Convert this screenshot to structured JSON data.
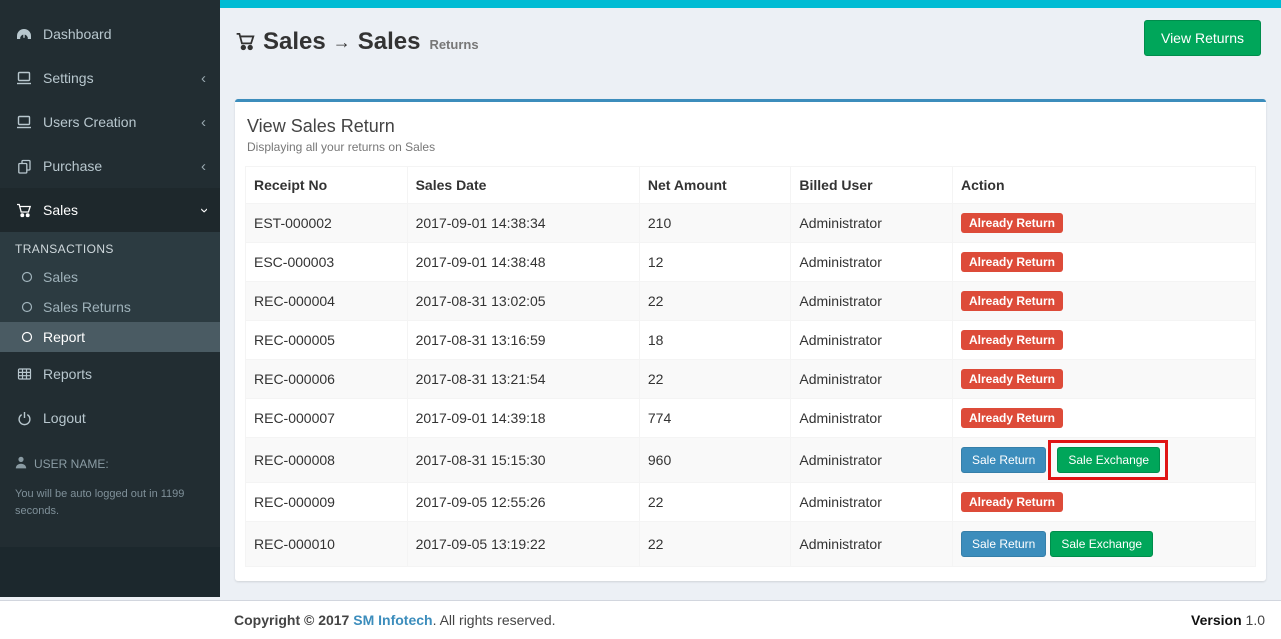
{
  "colors": {
    "topbar": "#00bcd4",
    "sidebar": "#222d32",
    "accent": "#3c8dbc",
    "green": "#00a65a",
    "red": "#dd4b39",
    "annotation": "#e01414"
  },
  "sidebar": {
    "items": [
      {
        "label": "Dashboard",
        "icon": "dashboard-icon"
      },
      {
        "label": "Settings",
        "icon": "laptop-icon",
        "chevron": "‹"
      },
      {
        "label": "Users Creation",
        "icon": "laptop-icon",
        "chevron": "‹"
      },
      {
        "label": "Purchase",
        "icon": "copy-icon",
        "chevron": "‹"
      },
      {
        "label": "Sales",
        "icon": "cart-icon",
        "chevron": "‹",
        "active": true
      }
    ],
    "section_label": "TRANSACTIONS",
    "submenu": [
      {
        "label": "Sales"
      },
      {
        "label": "Sales Returns"
      },
      {
        "label": "Report",
        "hovered": true
      }
    ],
    "reports_label": "Reports",
    "logout_label": "Logout",
    "user_label": "USER NAME:",
    "auto_logout": "You will be auto logged out in 1199 seconds."
  },
  "header": {
    "section": "Sales",
    "arrow": "→",
    "page": "Sales",
    "page_sub": "Returns",
    "button_label": "View Returns"
  },
  "card": {
    "title": "View Sales Return",
    "subtitle": "Displaying all your returns on Sales"
  },
  "labels": {
    "already_return": "Already Return",
    "sale_return": "Sale Return",
    "sale_exchange": "Sale Exchange"
  },
  "table": {
    "columns": [
      "Receipt No",
      "Sales Date",
      "Net Amount",
      "Billed User",
      "Action"
    ],
    "rows": [
      {
        "receipt_no": "EST-000002",
        "sales_date": "2017-09-01 14:38:34",
        "net_amount": "210",
        "billed_user": "Administrator",
        "action": "already"
      },
      {
        "receipt_no": "ESC-000003",
        "sales_date": "2017-09-01 14:38:48",
        "net_amount": "12",
        "billed_user": "Administrator",
        "action": "already"
      },
      {
        "receipt_no": "REC-000004",
        "sales_date": "2017-08-31 13:02:05",
        "net_amount": "22",
        "billed_user": "Administrator",
        "action": "already"
      },
      {
        "receipt_no": "REC-000005",
        "sales_date": "2017-08-31 13:16:59",
        "net_amount": "18",
        "billed_user": "Administrator",
        "action": "already"
      },
      {
        "receipt_no": "REC-000006",
        "sales_date": "2017-08-31 13:21:54",
        "net_amount": "22",
        "billed_user": "Administrator",
        "action": "already"
      },
      {
        "receipt_no": "REC-000007",
        "sales_date": "2017-09-01 14:39:18",
        "net_amount": "774",
        "billed_user": "Administrator",
        "action": "already"
      },
      {
        "receipt_no": "REC-000008",
        "sales_date": "2017-08-31 15:15:30",
        "net_amount": "960",
        "billed_user": "Administrator",
        "action": "pair",
        "highlighted": true
      },
      {
        "receipt_no": "REC-000009",
        "sales_date": "2017-09-05 12:55:26",
        "net_amount": "22",
        "billed_user": "Administrator",
        "action": "already"
      },
      {
        "receipt_no": "REC-000010",
        "sales_date": "2017-09-05 13:19:22",
        "net_amount": "22",
        "billed_user": "Administrator",
        "action": "pair"
      }
    ]
  },
  "footer": {
    "copyright_prefix": "Copyright © 2017",
    "link_text": "SM Infotech",
    "suffix": ". All rights reserved.",
    "version_label": "Version",
    "version_value": "1.0"
  }
}
